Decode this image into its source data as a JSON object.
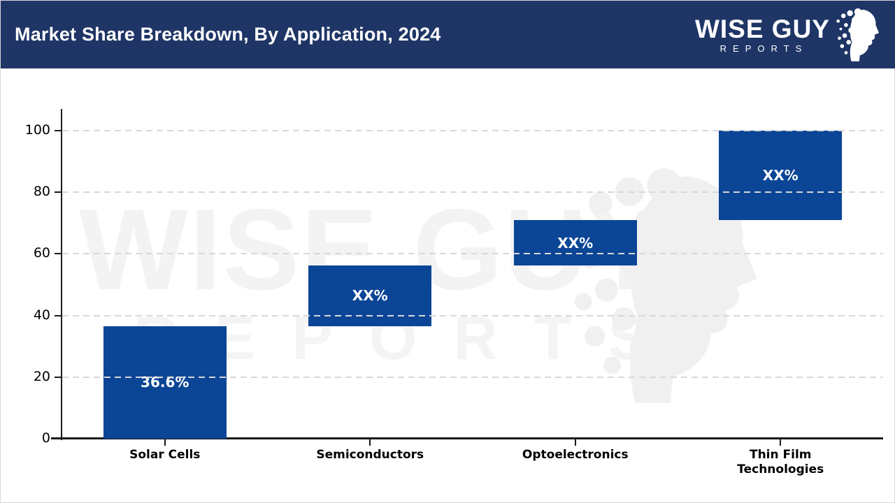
{
  "header": {
    "title": "Market Share Breakdown, By Application, 2024",
    "bg_color": "#1f3566",
    "logo_line1": "WISE GUY",
    "logo_line2": "REPORTS"
  },
  "watermark": {
    "line1": "WISE GUY",
    "line2": "REPORTS"
  },
  "chart_data": {
    "type": "bar",
    "variant": "waterfall",
    "title": "Market Share Breakdown, By Application, 2024",
    "categories": [
      "Solar Cells",
      "Semiconductors",
      "Optoelectronics",
      "Thin Film Technologies"
    ],
    "segments": [
      {
        "category": "Solar Cells",
        "start": 0,
        "end": 36.6,
        "label": "36.6%"
      },
      {
        "category": "Semiconductors",
        "start": 36.6,
        "end": 56.2,
        "label": "XX%"
      },
      {
        "category": "Optoelectronics",
        "start": 56.2,
        "end": 70.9,
        "label": "XX%"
      },
      {
        "category": "Thin Film Technologies",
        "start": 70.9,
        "end": 100,
        "label": "XX%"
      }
    ],
    "yticks": [
      0,
      20,
      40,
      60,
      80,
      100
    ],
    "ylim": [
      0,
      107
    ],
    "xlabel": "",
    "ylabel": "",
    "grid": "horizontal-dashed",
    "legend": "none",
    "bar_color": "#0b4596",
    "bar_label_color": "#ffffff",
    "axis_color": "#1a1a1a",
    "gridline_color": "#d8d8d8"
  }
}
